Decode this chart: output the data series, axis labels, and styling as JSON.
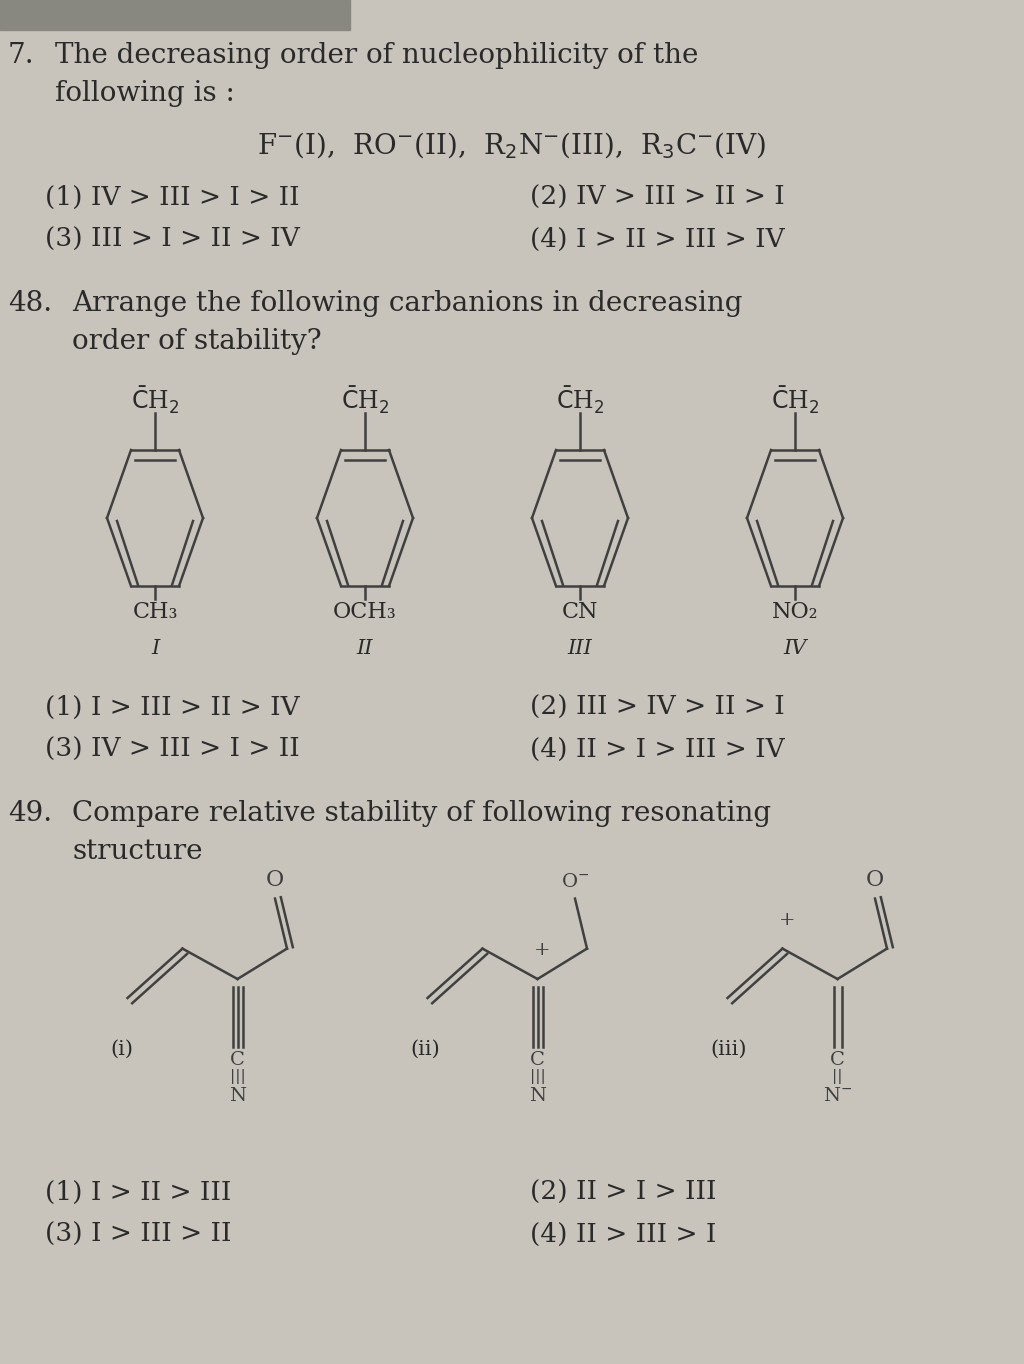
{
  "bg_color": "#c8c4bc",
  "text_color": "#2a2a2a",
  "q47_options": [
    [
      "(1) IV > III > I > II",
      "(2) IV > III > II > I"
    ],
    [
      "(3) III > I > II > IV",
      "(4) I > II > III > IV"
    ]
  ],
  "q48_subs": [
    "CH₃",
    "OCH₃",
    "CN",
    "NO₂"
  ],
  "q48_romans": [
    "I",
    "II",
    "III",
    "IV"
  ],
  "q48_options": [
    [
      "(1) I > III > II > IV",
      "(2) III > IV > II > I"
    ],
    [
      "(3) IV > III > I > II",
      "(4) II > I > III > IV"
    ]
  ],
  "q49_labels": [
    "(i)",
    "(ii)",
    "(iii)"
  ],
  "q49_options": [
    [
      "(1) I > II > III",
      "(2) II > I > III"
    ],
    [
      "(3) I > III > II",
      "(4) II > III > I"
    ]
  ]
}
